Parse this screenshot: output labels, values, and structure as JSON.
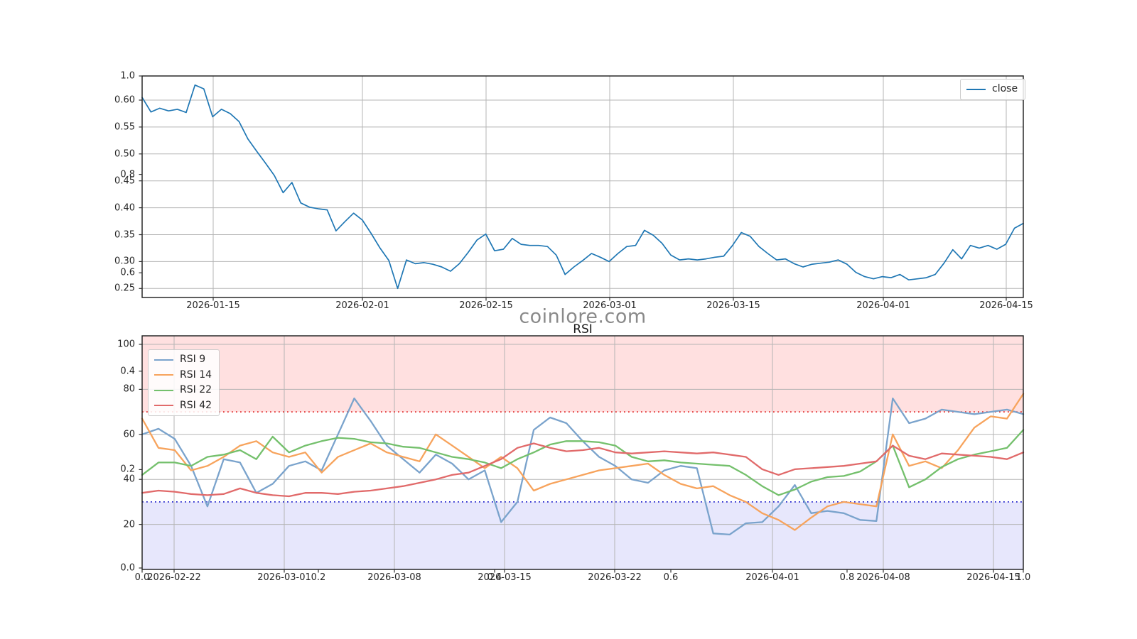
{
  "watermark": {
    "text": "coinlore.com",
    "color": "#8a8a8a"
  },
  "price_chart": {
    "legend": [
      {
        "label": "close",
        "color": "#1f77b4"
      }
    ],
    "y_tick_labels": [
      "0.60",
      "0.55",
      "0.50",
      "0.45",
      "0.40",
      "0.35",
      "0.30",
      "0.25"
    ],
    "x_tick_labels": [
      "2026-01-15",
      "2026-02-01",
      "2026-02-15",
      "2026-03-01",
      "2026-03-15",
      "2026-04-01",
      "2026-04-15"
    ]
  },
  "rsi_chart": {
    "title": "RSI",
    "legend": [
      {
        "label": "RSI 9",
        "color": "#7aa3cc"
      },
      {
        "label": "RSI 14",
        "color": "#f7a35c"
      },
      {
        "label": "RSI 22",
        "color": "#74c06c"
      },
      {
        "label": "RSI 42",
        "color": "#e16a6a"
      }
    ],
    "y_tick_labels": [
      "100",
      "80",
      "60",
      "40",
      "20"
    ],
    "x_tick_labels": [
      "2026-02-22",
      "2026-03-01",
      "2026-03-08",
      "2026-03-15",
      "2026-03-22",
      "2026-04-01",
      "2026-04-08",
      "2026-04-15"
    ],
    "overbought_level": 70,
    "oversold_level": 30,
    "overbought_line_color": "#e02b2b",
    "oversold_line_color": "#2222cc",
    "overbought_band_color": "rgba(255,0,0,0.12)",
    "oversold_band_color": "rgba(70,70,230,0.13)"
  },
  "overlay_axis": {
    "y_tick_labels": [
      "1.0",
      "0.8",
      "0.6",
      "0.4",
      "0.2",
      "0.0"
    ],
    "x_tick_labels": [
      "0.0",
      "0.2",
      "0.4",
      "0.6",
      "0.8",
      "1.0"
    ]
  },
  "chart_data": [
    {
      "type": "line",
      "name": "close-price",
      "x_start": "2026-01-06",
      "x_freq": "daily",
      "x_tick_labels": [
        "2026-01-15",
        "2026-02-01",
        "2026-02-15",
        "2026-03-01",
        "2026-03-15",
        "2026-04-01",
        "2026-04-15"
      ],
      "ylim": [
        0.233,
        0.645
      ],
      "y_ticks": [
        0.25,
        0.3,
        0.35,
        0.4,
        0.45,
        0.5,
        0.55,
        0.6
      ],
      "grid": true,
      "legend_position": "upper right",
      "series": [
        {
          "name": "close",
          "color": "#1f77b4",
          "values": [
            0.605,
            0.578,
            0.585,
            0.58,
            0.583,
            0.577,
            0.628,
            0.621,
            0.569,
            0.583,
            0.575,
            0.56,
            0.528,
            0.505,
            0.483,
            0.46,
            0.428,
            0.447,
            0.409,
            0.401,
            0.398,
            0.396,
            0.357,
            0.374,
            0.39,
            0.377,
            0.352,
            0.325,
            0.302,
            0.25,
            0.303,
            0.296,
            0.298,
            0.295,
            0.29,
            0.282,
            0.296,
            0.317,
            0.34,
            0.351,
            0.32,
            0.323,
            0.343,
            0.332,
            0.33,
            0.33,
            0.328,
            0.312,
            0.276,
            0.29,
            0.302,
            0.315,
            0.308,
            0.3,
            0.315,
            0.328,
            0.33,
            0.358,
            0.349,
            0.334,
            0.312,
            0.303,
            0.305,
            0.303,
            0.305,
            0.308,
            0.31,
            0.33,
            0.354,
            0.347,
            0.328,
            0.315,
            0.303,
            0.305,
            0.296,
            0.29,
            0.295,
            0.297,
            0.299,
            0.303,
            0.295,
            0.28,
            0.272,
            0.268,
            0.272,
            0.27,
            0.276,
            0.266,
            0.268,
            0.27,
            0.276,
            0.297,
            0.322,
            0.305,
            0.33,
            0.325,
            0.33,
            0.323,
            0.332,
            0.362,
            0.371
          ]
        }
      ]
    },
    {
      "type": "line",
      "name": "rsi",
      "title": "RSI",
      "x_start": "2026-02-20",
      "x_freq": "daily",
      "x_tick_labels": [
        "2026-02-22",
        "2026-03-01",
        "2026-03-08",
        "2026-03-15",
        "2026-03-22",
        "2026-04-01",
        "2026-04-08",
        "2026-04-15"
      ],
      "ylim": [
        0,
        103.8
      ],
      "y_ticks": [
        0,
        20,
        40,
        60,
        80,
        100
      ],
      "grid": true,
      "legend_position": "upper left",
      "overbought_level": 70,
      "oversold_level": 30,
      "series": [
        {
          "name": "RSI 9",
          "color": "#7aa3cc",
          "values": [
            60,
            62.5,
            58,
            46,
            28,
            49,
            47.5,
            34,
            38,
            46,
            48,
            44,
            60,
            76,
            66,
            55,
            49,
            43,
            51,
            47,
            40,
            44,
            21,
            30,
            62,
            67.5,
            65,
            57,
            50,
            46,
            40,
            38.5,
            44,
            46,
            45,
            16,
            15.5,
            20.5,
            21,
            28,
            37.5,
            25,
            26,
            25,
            22,
            21.5,
            76,
            65,
            67,
            71,
            70,
            69,
            70,
            71,
            69
          ]
        },
        {
          "name": "RSI 14",
          "color": "#f7a35c",
          "values": [
            67,
            54,
            53,
            44,
            46,
            50,
            55,
            57,
            52,
            50,
            52,
            43,
            50,
            53,
            56,
            52,
            50,
            48,
            60,
            55,
            50,
            45,
            50,
            45,
            35,
            38,
            40,
            42,
            44,
            45,
            46,
            47,
            42,
            38,
            36,
            37,
            33,
            30,
            25,
            22,
            17.5,
            23,
            28,
            30,
            29,
            28,
            60,
            46,
            48,
            45,
            53,
            63,
            68,
            67,
            78
          ]
        },
        {
          "name": "RSI 22",
          "color": "#74c06c",
          "values": [
            42,
            47.5,
            47.5,
            46,
            50,
            51,
            53,
            49,
            59,
            52,
            55,
            57,
            58.5,
            58,
            56.5,
            56,
            54.5,
            54,
            52,
            50,
            49,
            47.5,
            45,
            49,
            52,
            55.5,
            57,
            57,
            56.5,
            55,
            50,
            48,
            48.5,
            47.5,
            47,
            46.5,
            46,
            42,
            37,
            33,
            35.5,
            39,
            41,
            41.5,
            43.5,
            48,
            55,
            36.5,
            40,
            45.5,
            49,
            51,
            52.5,
            54,
            62
          ]
        },
        {
          "name": "RSI 42",
          "color": "#e16a6a",
          "values": [
            34,
            35,
            34.5,
            33.5,
            33,
            33.5,
            36,
            34,
            33,
            32.5,
            34,
            34,
            33.5,
            34.5,
            35,
            36,
            37,
            38.5,
            40,
            42,
            43,
            46,
            49,
            54,
            56,
            54,
            52.5,
            53,
            54,
            52,
            51.5,
            52,
            52.5,
            52,
            51.5,
            52,
            51,
            50,
            44.5,
            42,
            44.5,
            45,
            45.5,
            46,
            47,
            48,
            55,
            50.5,
            49,
            51.5,
            51,
            50.5,
            50,
            49,
            52
          ]
        }
      ]
    }
  ]
}
